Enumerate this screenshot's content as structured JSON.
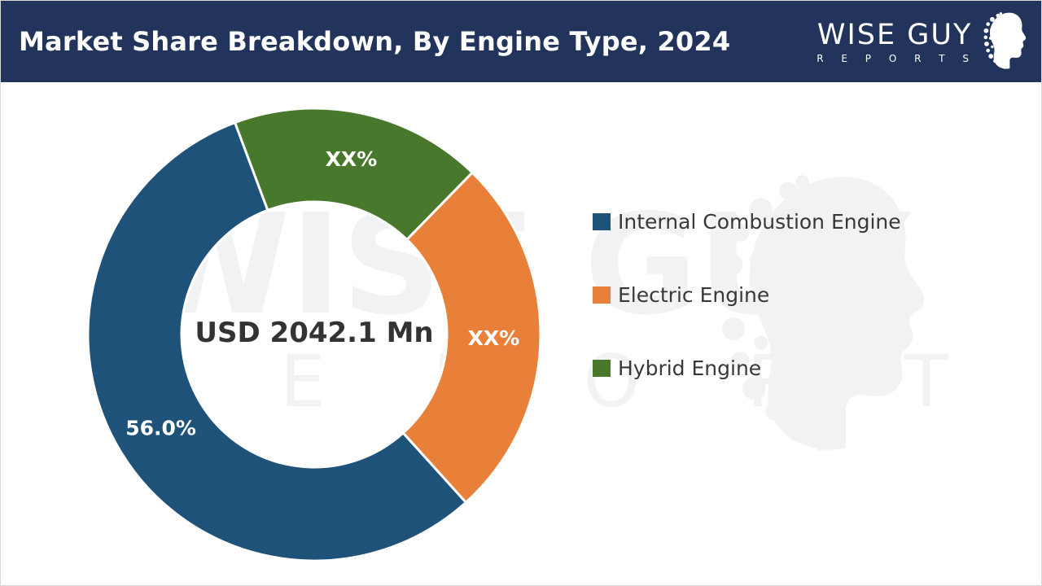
{
  "page": {
    "background": "#ffffff",
    "border_color": "#d9d9d9"
  },
  "header": {
    "title": "Market Share Breakdown, By Engine Type, 2024",
    "background": "#22345C",
    "logo": {
      "line1": "WISE GUY",
      "line2": "R E P O R T S"
    }
  },
  "chart_data": {
    "type": "pie",
    "subtype": "donut",
    "title": "Market Share Breakdown, By Engine Type, 2024",
    "center_label": "USD 2042.1 Mn",
    "start_angle_deg": 110.5,
    "direction": "counterclockwise",
    "legend_position": "right",
    "slices": [
      {
        "label": "Internal Combustion Engine",
        "value_pct": 56.0,
        "display_label": "56.0%",
        "color": "#1F5278"
      },
      {
        "label": "Electric Engine",
        "value_pct": 26.0,
        "display_label": "XX%",
        "color": "#E9803A"
      },
      {
        "label": "Hybrid Engine",
        "value_pct": 18.0,
        "display_label": "XX%",
        "color": "#47782B"
      }
    ]
  },
  "watermark": {
    "line1": "WISE GUY",
    "line2": "R E P O R T S"
  }
}
